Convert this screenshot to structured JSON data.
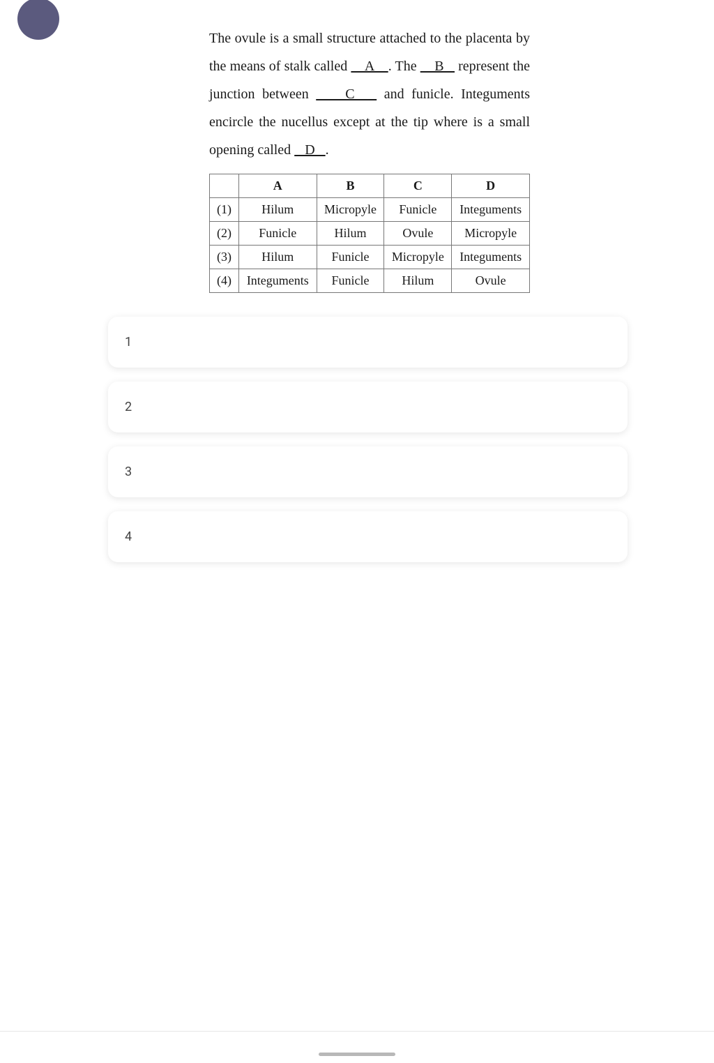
{
  "question": {
    "segments": [
      "The ovule is a small structure attached to the placenta by the means of stalk called ",
      "    A    ",
      ". The ",
      "    B   ",
      " represent the junction between ",
      "    C   ",
      " and funicle. Integuments encircle the nucellus except at the tip where is a small opening called ",
      "   D   ",
      "."
    ],
    "blank_indices": [
      1,
      3,
      5,
      7
    ]
  },
  "table": {
    "headers": [
      "",
      "A",
      "B",
      "C",
      "D"
    ],
    "rows": [
      [
        "(1)",
        "Hilum",
        "Micropyle",
        "Funicle",
        "Integuments"
      ],
      [
        "(2)",
        "Funicle",
        "Hilum",
        "Ovule",
        "Micropyle"
      ],
      [
        "(3)",
        "Hilum",
        "Funicle",
        "Micropyle",
        "Integuments"
      ],
      [
        "(4)",
        "Integuments",
        "Funicle",
        "Hilum",
        "Ovule"
      ]
    ]
  },
  "options": [
    {
      "label": "1"
    },
    {
      "label": "2"
    },
    {
      "label": "3"
    },
    {
      "label": "4"
    }
  ],
  "colors": {
    "avatar": "#5b5a7e",
    "text": "#1a1a1a",
    "border": "#777777",
    "shadow": "rgba(0,0,0,0.10)",
    "divider": "#e6e6e6",
    "handle": "#b8b8b8"
  }
}
